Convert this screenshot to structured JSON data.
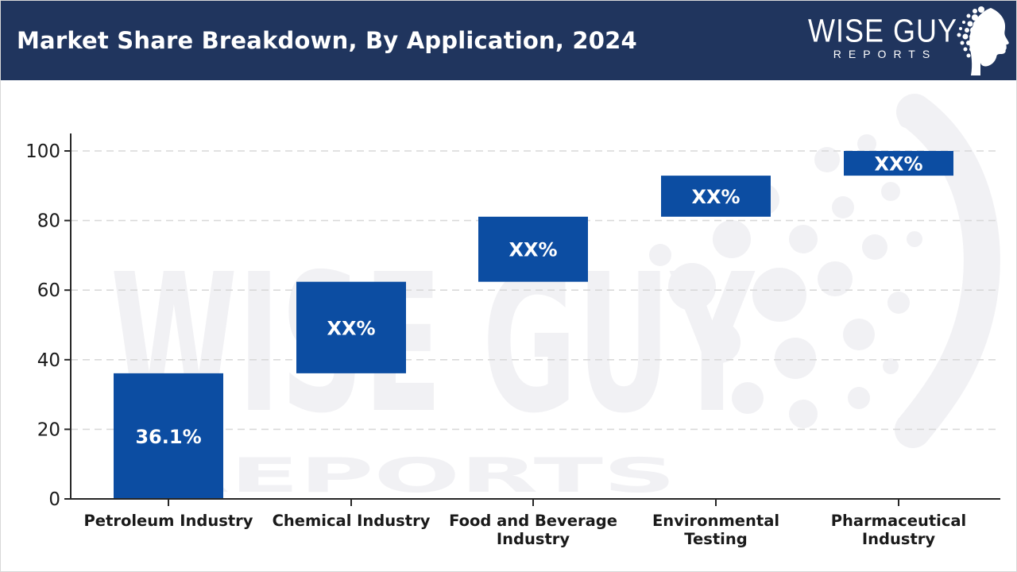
{
  "header": {
    "title": "Market Share Breakdown, By Application, 2024",
    "logo": {
      "wordmark": "WISE GUY",
      "subtext": "REPORTS"
    }
  },
  "watermark": {
    "wordmark": "WISE GUY",
    "subtext": "REPORTS"
  },
  "chart_data": {
    "type": "bar",
    "subtype": "waterfall-stacked",
    "title": "Market Share Breakdown, By Application, 2024",
    "unit": "%",
    "categories": [
      "Petroleum Industry",
      "Chemical Industry",
      "Food and Beverage Industry",
      "Environmental Testing",
      "Pharmaceutical Industry"
    ],
    "category_label_lines": [
      [
        "Petroleum Industry"
      ],
      [
        "Chemical Industry"
      ],
      [
        "Food and Beverage",
        "Industry"
      ],
      [
        "Environmental",
        "Testing"
      ],
      [
        "Pharmaceutical",
        "Industry"
      ]
    ],
    "bars": [
      {
        "category": "Petroleum Industry",
        "start": 0,
        "end": 36.1,
        "height": 36.1,
        "value_label": "36.1%"
      },
      {
        "category": "Chemical Industry",
        "start": 36.1,
        "end": 62.4,
        "height": 26.3,
        "value_label": "XX%"
      },
      {
        "category": "Food and Beverage Industry",
        "start": 62.4,
        "end": 81.1,
        "height": 18.7,
        "value_label": "XX%"
      },
      {
        "category": "Environmental Testing",
        "start": 81.1,
        "end": 92.9,
        "height": 11.8,
        "value_label": "XX%"
      },
      {
        "category": "Pharmaceutical Industry",
        "start": 92.9,
        "end": 100,
        "height": 7.1,
        "value_label": "XX%"
      }
    ],
    "yticks": [
      0,
      20,
      40,
      60,
      80,
      100
    ],
    "ylim": [
      0,
      105
    ],
    "xlabel": "",
    "ylabel": "",
    "grid": "horizontal-dashed",
    "legend": "none",
    "bar_color": "#0C4DA2",
    "value_label_color": "#FFFFFF"
  },
  "colors": {
    "header_bg": "#20355E",
    "bar": "#0C4DA2",
    "grid_line": "#D9D9D9",
    "axis_line": "#262626",
    "tick_text": "#1A1A1A",
    "watermark": "#F1F1F4",
    "page_border": "#D8D8D8"
  }
}
